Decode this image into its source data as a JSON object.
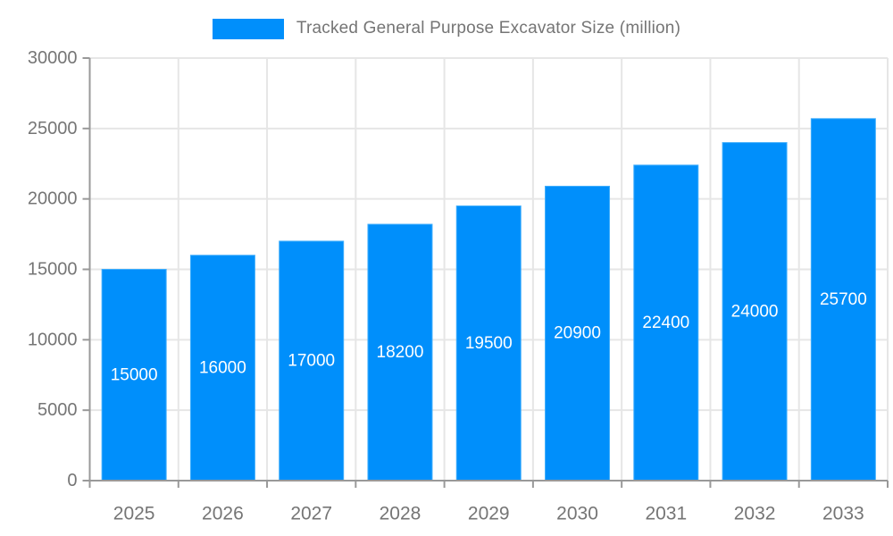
{
  "legend": {
    "label": "Tracked General Purpose Excavator Size (million)"
  },
  "chart_data": {
    "type": "bar",
    "title": "Tracked General Purpose Excavator Size (million)",
    "categories": [
      "2025",
      "2026",
      "2027",
      "2028",
      "2029",
      "2030",
      "2031",
      "2032",
      "2033"
    ],
    "values": [
      15000,
      16000,
      17000,
      18200,
      19500,
      20900,
      22400,
      24000,
      25700
    ],
    "bar_labels": [
      "15000",
      "16000",
      "17000",
      "18200",
      "19500",
      "20900",
      "22400",
      "24000",
      "25700"
    ],
    "xlabel": "",
    "ylabel": "",
    "ylim": [
      0,
      30000
    ],
    "y_ticks": [
      0,
      5000,
      10000,
      15000,
      20000,
      25000,
      30000
    ],
    "y_tick_labels": [
      "0",
      "5000",
      "10000",
      "15000",
      "20000",
      "25000",
      "30000"
    ],
    "grid": true,
    "legend_position": "top",
    "colors": {
      "bar": "#008ffb",
      "bar_edge": "#40aefc",
      "bar_label_text": "#ffffff",
      "axis_text": "#757575",
      "gridline": "#e6e6e6",
      "axis_line": "#999999"
    }
  }
}
